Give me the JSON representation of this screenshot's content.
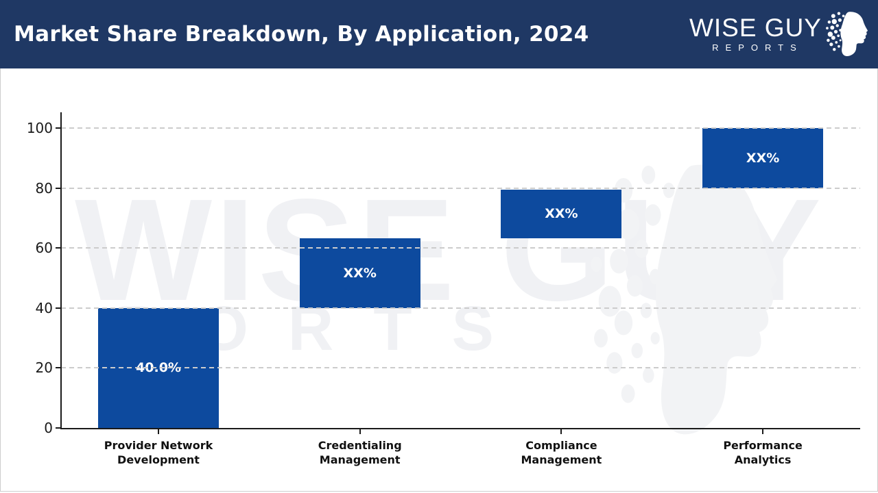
{
  "header": {
    "title": "Market Share Breakdown, By Application, 2024",
    "logo": {
      "line1": "WISE GUY",
      "line2": "REPORTS"
    }
  },
  "watermark": {
    "line1": "WISE GUY",
    "line2": "PORTS"
  },
  "colors": {
    "header_bg": "#1f3864",
    "bar": "#0d4a9e",
    "bar_label": "#ffffff",
    "watermark": "#f0f1f4",
    "gridline": "#cccccc",
    "axis": "#1a1a1a",
    "page_bg": "#ffffff"
  },
  "chart_data": {
    "type": "bar",
    "subtype": "floating-waterfall",
    "title": "Market Share Breakdown, By Application, 2024",
    "categories": [
      "Provider Network Development",
      "Credentialing Management",
      "Compliance Management",
      "Performance Analytics"
    ],
    "category_display_lines": [
      [
        "Provider Network",
        "Development"
      ],
      [
        "Credentialing",
        "Management"
      ],
      [
        "Compliance",
        "Management"
      ],
      [
        "Performance",
        "Analytics"
      ]
    ],
    "segments": [
      {
        "category": "Provider Network Development",
        "start": 0,
        "end": 40,
        "label": "40.0%"
      },
      {
        "category": "Credentialing Management",
        "start": 40,
        "end": 63.3,
        "label": "XX%"
      },
      {
        "category": "Compliance Management",
        "start": 63.3,
        "end": 79.5,
        "label": "XX%"
      },
      {
        "category": "Performance Analytics",
        "start": 79.9,
        "end": 100,
        "label": "XX%"
      }
    ],
    "yticks": [
      0,
      20,
      40,
      60,
      80,
      100
    ],
    "ylim": [
      0,
      105
    ],
    "xlabel": "",
    "ylabel": "",
    "grid": "horizontal-dashed",
    "legend": "none"
  }
}
